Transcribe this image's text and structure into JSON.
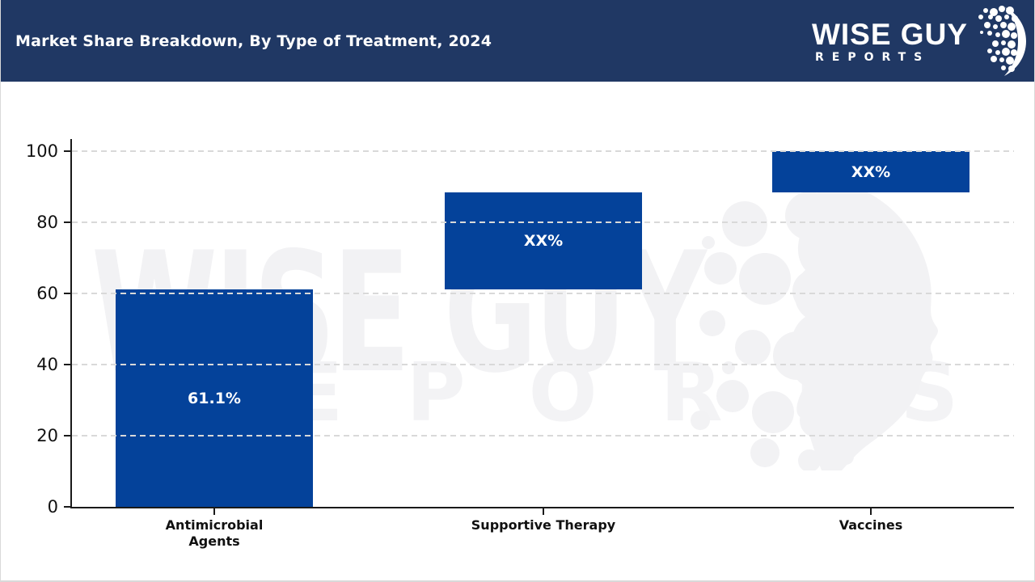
{
  "header": {
    "title": "Market Share Breakdown, By Type of Treatment, 2024",
    "bg_color": "#203864",
    "logo": {
      "line1": "WISE GUY",
      "line2": "REPORTS"
    }
  },
  "watermark": {
    "line1": "WISE GUY",
    "line2": "REPORTS"
  },
  "chart_data": {
    "type": "bar",
    "variant": "floating-waterfall",
    "title": "Market Share Breakdown, By Type of Treatment, 2024",
    "categories": [
      "Antimicrobial\nAgents",
      "Supportive Therapy",
      "Vaccines"
    ],
    "series": [
      {
        "name": "Market share (%)",
        "segments": [
          {
            "category": "Antimicrobial Agents",
            "start": 0,
            "end": 61.1,
            "label": "61.1%"
          },
          {
            "category": "Supportive Therapy",
            "start": 61.1,
            "end": 88.3,
            "label": "XX%"
          },
          {
            "category": "Vaccines",
            "start": 88.3,
            "end": 100,
            "label": "XX%"
          }
        ]
      }
    ],
    "yticks": [
      0,
      20,
      40,
      60,
      80,
      100
    ],
    "ylim": [
      0,
      103
    ],
    "xlabel": "",
    "ylabel": "",
    "grid": "dashed-horizontal",
    "legend": "none",
    "bar_color": "#04429a",
    "label_color": "#ffffff",
    "grid_color": "#d9d9d9",
    "axis_color": "#1a1a1a",
    "tick_label_color": "#111111"
  }
}
